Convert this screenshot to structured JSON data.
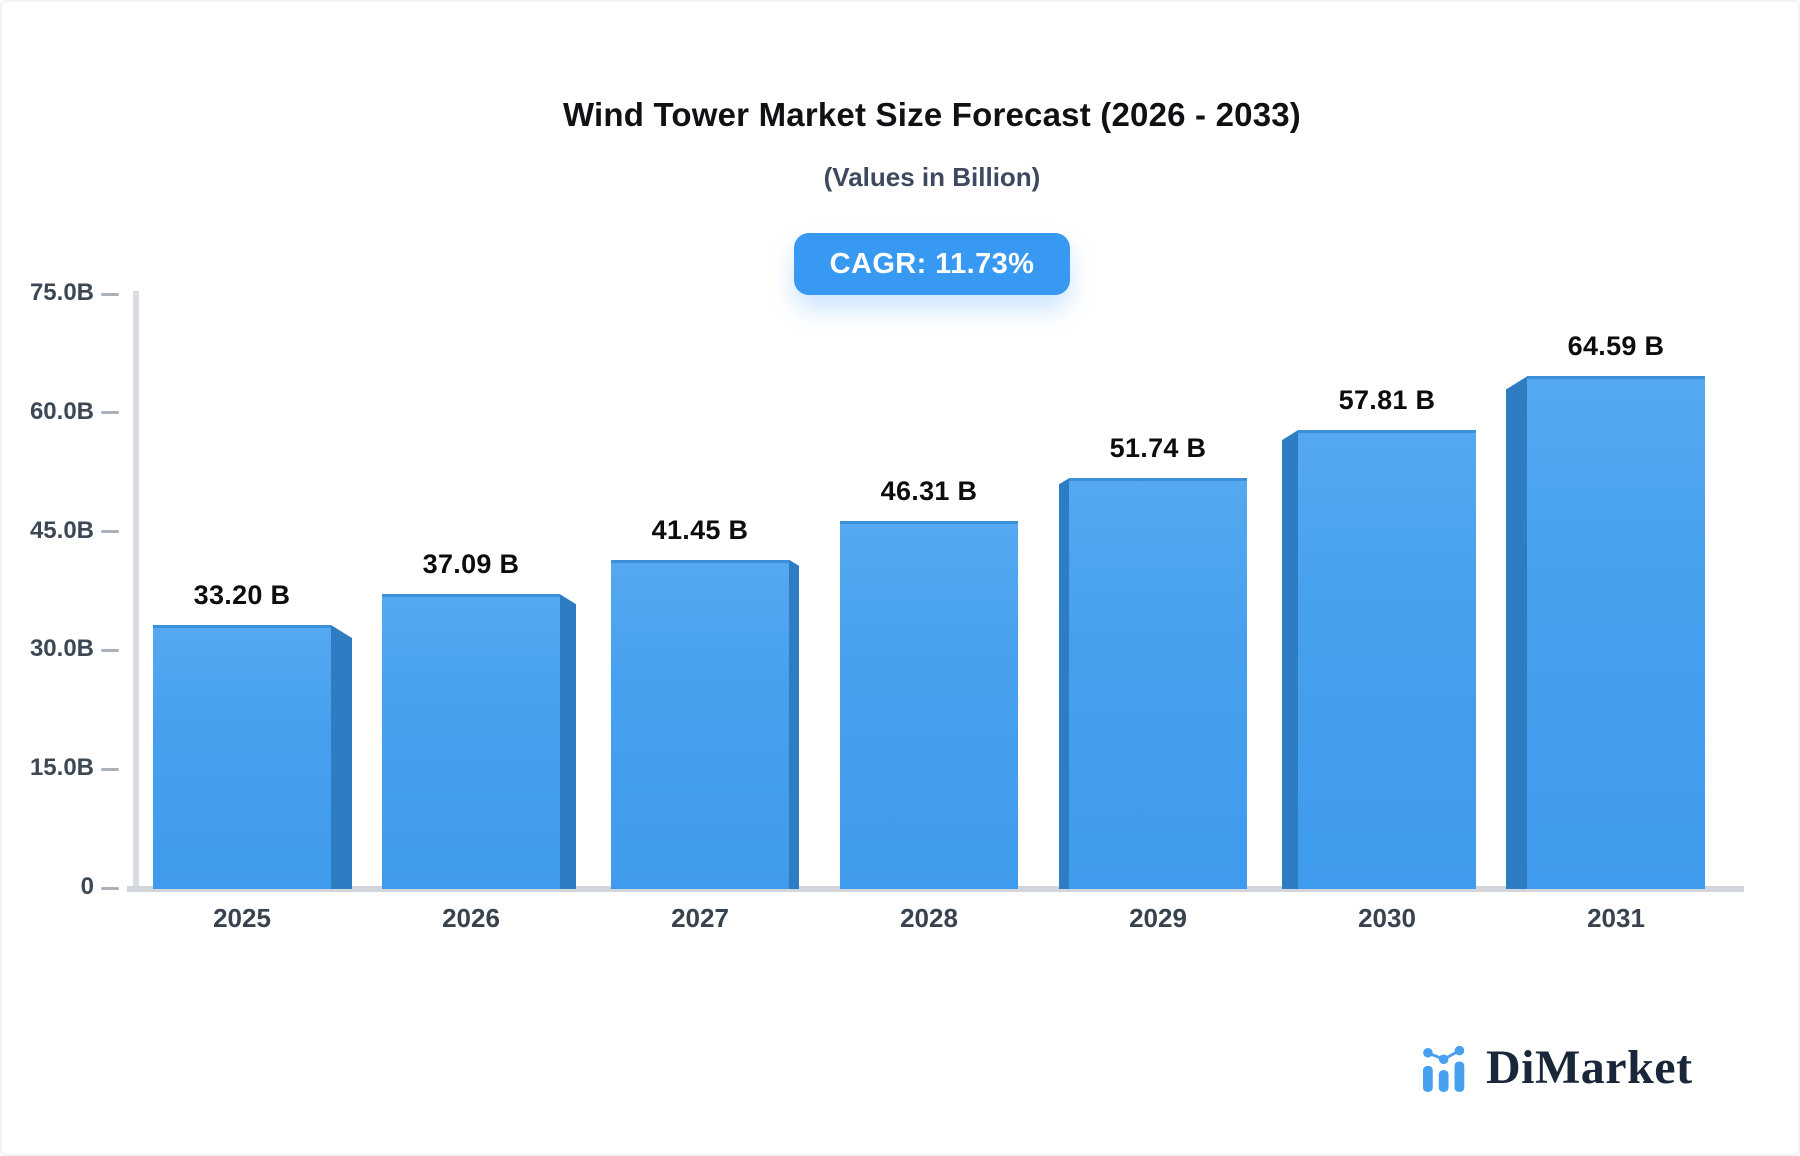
{
  "header": {
    "title": "Wind Tower Market Size Forecast (2026 - 2033)",
    "subtitle": "(Values in Billion)",
    "badge_label": "CAGR: 11.73%",
    "badge_color": "#3899f2"
  },
  "chart_data": {
    "type": "bar",
    "title": "Wind Tower Market Size Forecast (2026 - 2033)",
    "subtitle": "(Values in Billion)",
    "categories": [
      "2025",
      "2026",
      "2027",
      "2028",
      "2029",
      "2030",
      "2031"
    ],
    "values": [
      33.2,
      37.09,
      41.45,
      46.31,
      51.74,
      57.81,
      64.59
    ],
    "value_labels": [
      "33.20 B",
      "37.09 B",
      "41.45 B",
      "46.31 B",
      "51.74 B",
      "57.81 B",
      "64.59 B"
    ],
    "xlabel": "",
    "ylabel": "",
    "ylim": [
      0,
      75
    ],
    "yticks": {
      "values": [
        0,
        15,
        30,
        45,
        60,
        75
      ],
      "labels": [
        "0",
        "15.0B",
        "30.0B",
        "45.0B",
        "60.0B",
        "75.0B"
      ]
    },
    "grid": false,
    "legend": false,
    "style": "pseudo-3d extruded bars, extrusion faces point toward chart center",
    "bar_color": "#46a0ee",
    "bar_side_color": "#2e7cc1",
    "annotation": "CAGR: 11.73%"
  },
  "branding": {
    "logo_text": "DiMarket",
    "logo_icon": "bar-chart-trend-icon",
    "logo_text_color": "#1a2639",
    "logo_icon_color": "#47a0ef"
  }
}
